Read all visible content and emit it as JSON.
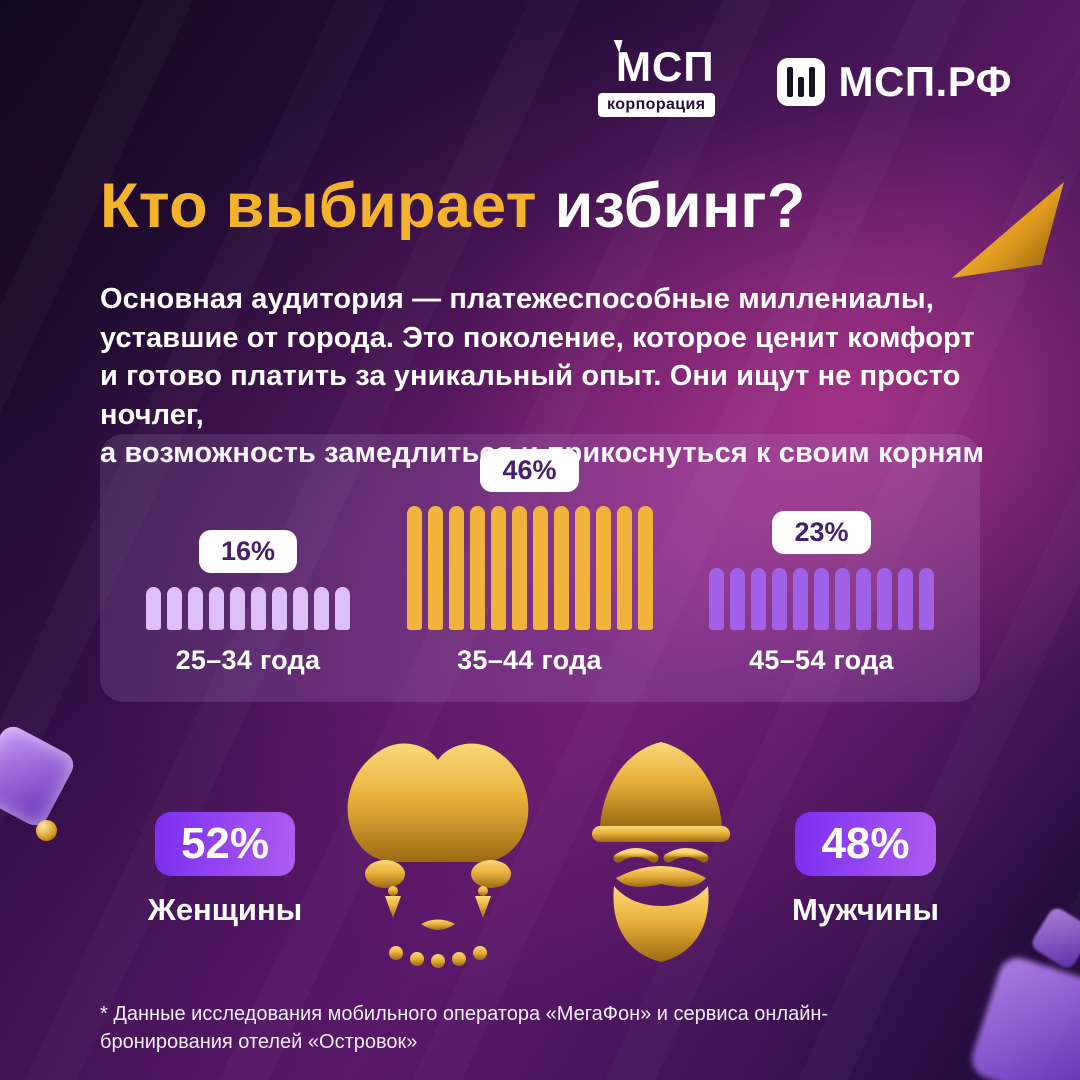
{
  "header": {
    "corp_logo": {
      "title": "МСП",
      "subtitle": "корпорация"
    },
    "rf_logo": "МСП.РФ"
  },
  "title": {
    "gold": "Кто выбирает",
    "white": "избинг?"
  },
  "intro": "Основная аудитория — платежеспособные миллениалы,\nуставшие от города. Это поколение, которое ценит комфорт\nи готово платить за уникальный опыт. Они ищут не просто ночлег,\nа возможность замедлиться и прикоснуться к своим корням",
  "chart_data": {
    "type": "bar",
    "categories": [
      "25–34 года",
      "35–44 года",
      "45–54 года"
    ],
    "values": [
      16,
      46,
      23
    ],
    "value_labels": [
      "16%",
      "46%",
      "23%"
    ],
    "bar_counts": [
      10,
      12,
      11
    ],
    "colors": [
      "#ddc0f6",
      "#f2b33d",
      "#a160e8"
    ],
    "ylim": [
      0,
      50
    ],
    "grid": false,
    "legend": "none",
    "title": ""
  },
  "gender": {
    "female": {
      "value": "52%",
      "label": "Женщины"
    },
    "male": {
      "value": "48%",
      "label": "Мужчины"
    }
  },
  "footnote": "* Данные исследования мобильного оператора «МегаФон» и сервиса онлайн-\nбронирования отелей «Островок»",
  "colors": {
    "accent_gold": "#f3b32b",
    "badge_text": "#44206e",
    "gender_gradient": [
      "#7b2ff0",
      "#ae5cf0"
    ]
  }
}
